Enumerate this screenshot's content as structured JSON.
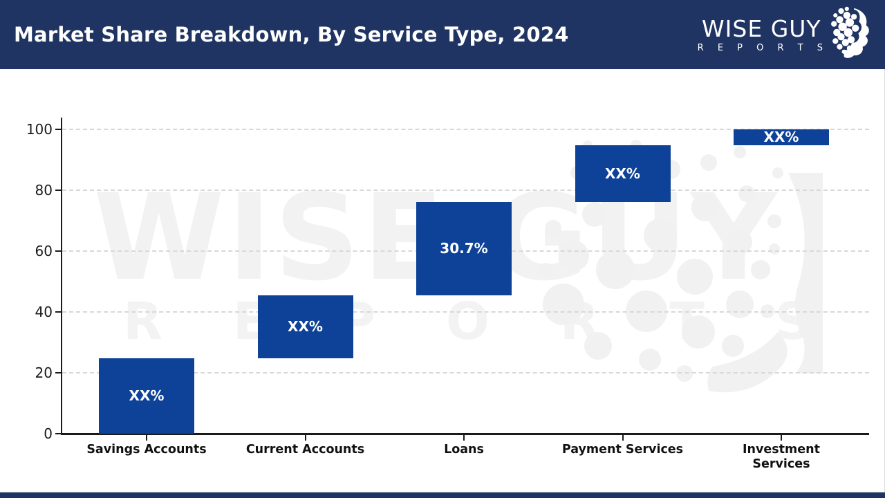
{
  "header": {
    "title": "Market Share Breakdown, By Service Type, 2024",
    "brand_name": "WISE GUY",
    "brand_sub": "R E P O R T S",
    "bg_color": "#1f3462"
  },
  "footer": {
    "bg_color": "#1f3462"
  },
  "watermark": {
    "line1": "WISE GUY",
    "line2": "R E P O R T S"
  },
  "chart_data": {
    "type": "bar",
    "subtype": "waterfall",
    "title": "Market Share Breakdown, By Service Type, 2024",
    "categories": [
      "Savings Accounts",
      "Current Accounts",
      "Loans",
      "Payment Services",
      "Investment Services"
    ],
    "category_display": [
      "Savings Accounts",
      "Current Accounts",
      "Loans",
      "Payment Services",
      "Investment\nServices"
    ],
    "segments": [
      {
        "category": "Savings Accounts",
        "start": 0,
        "end": 24.8,
        "label": "XX%"
      },
      {
        "category": "Current Accounts",
        "start": 24.8,
        "end": 45.5,
        "label": "XX%"
      },
      {
        "category": "Loans",
        "start": 45.5,
        "end": 76.2,
        "label": "30.7%"
      },
      {
        "category": "Payment Services",
        "start": 76.2,
        "end": 94.8,
        "label": "XX%"
      },
      {
        "category": "Investment Services",
        "start": 94.8,
        "end": 100,
        "label": "XX%"
      }
    ],
    "ylim": [
      0,
      100
    ],
    "yticks": [
      0,
      20,
      40,
      60,
      80,
      100
    ],
    "ytick_labels": [
      "0",
      "20",
      "40",
      "60",
      "80",
      "100"
    ],
    "xlabel": "",
    "ylabel": "",
    "grid": {
      "horizontal": true,
      "style": "dashed",
      "color": "#d8d8d8"
    },
    "legend": null,
    "bar_color": "#0d4298",
    "bar_label_color": "#ffffff",
    "axis_color": "#1a1a1a"
  }
}
